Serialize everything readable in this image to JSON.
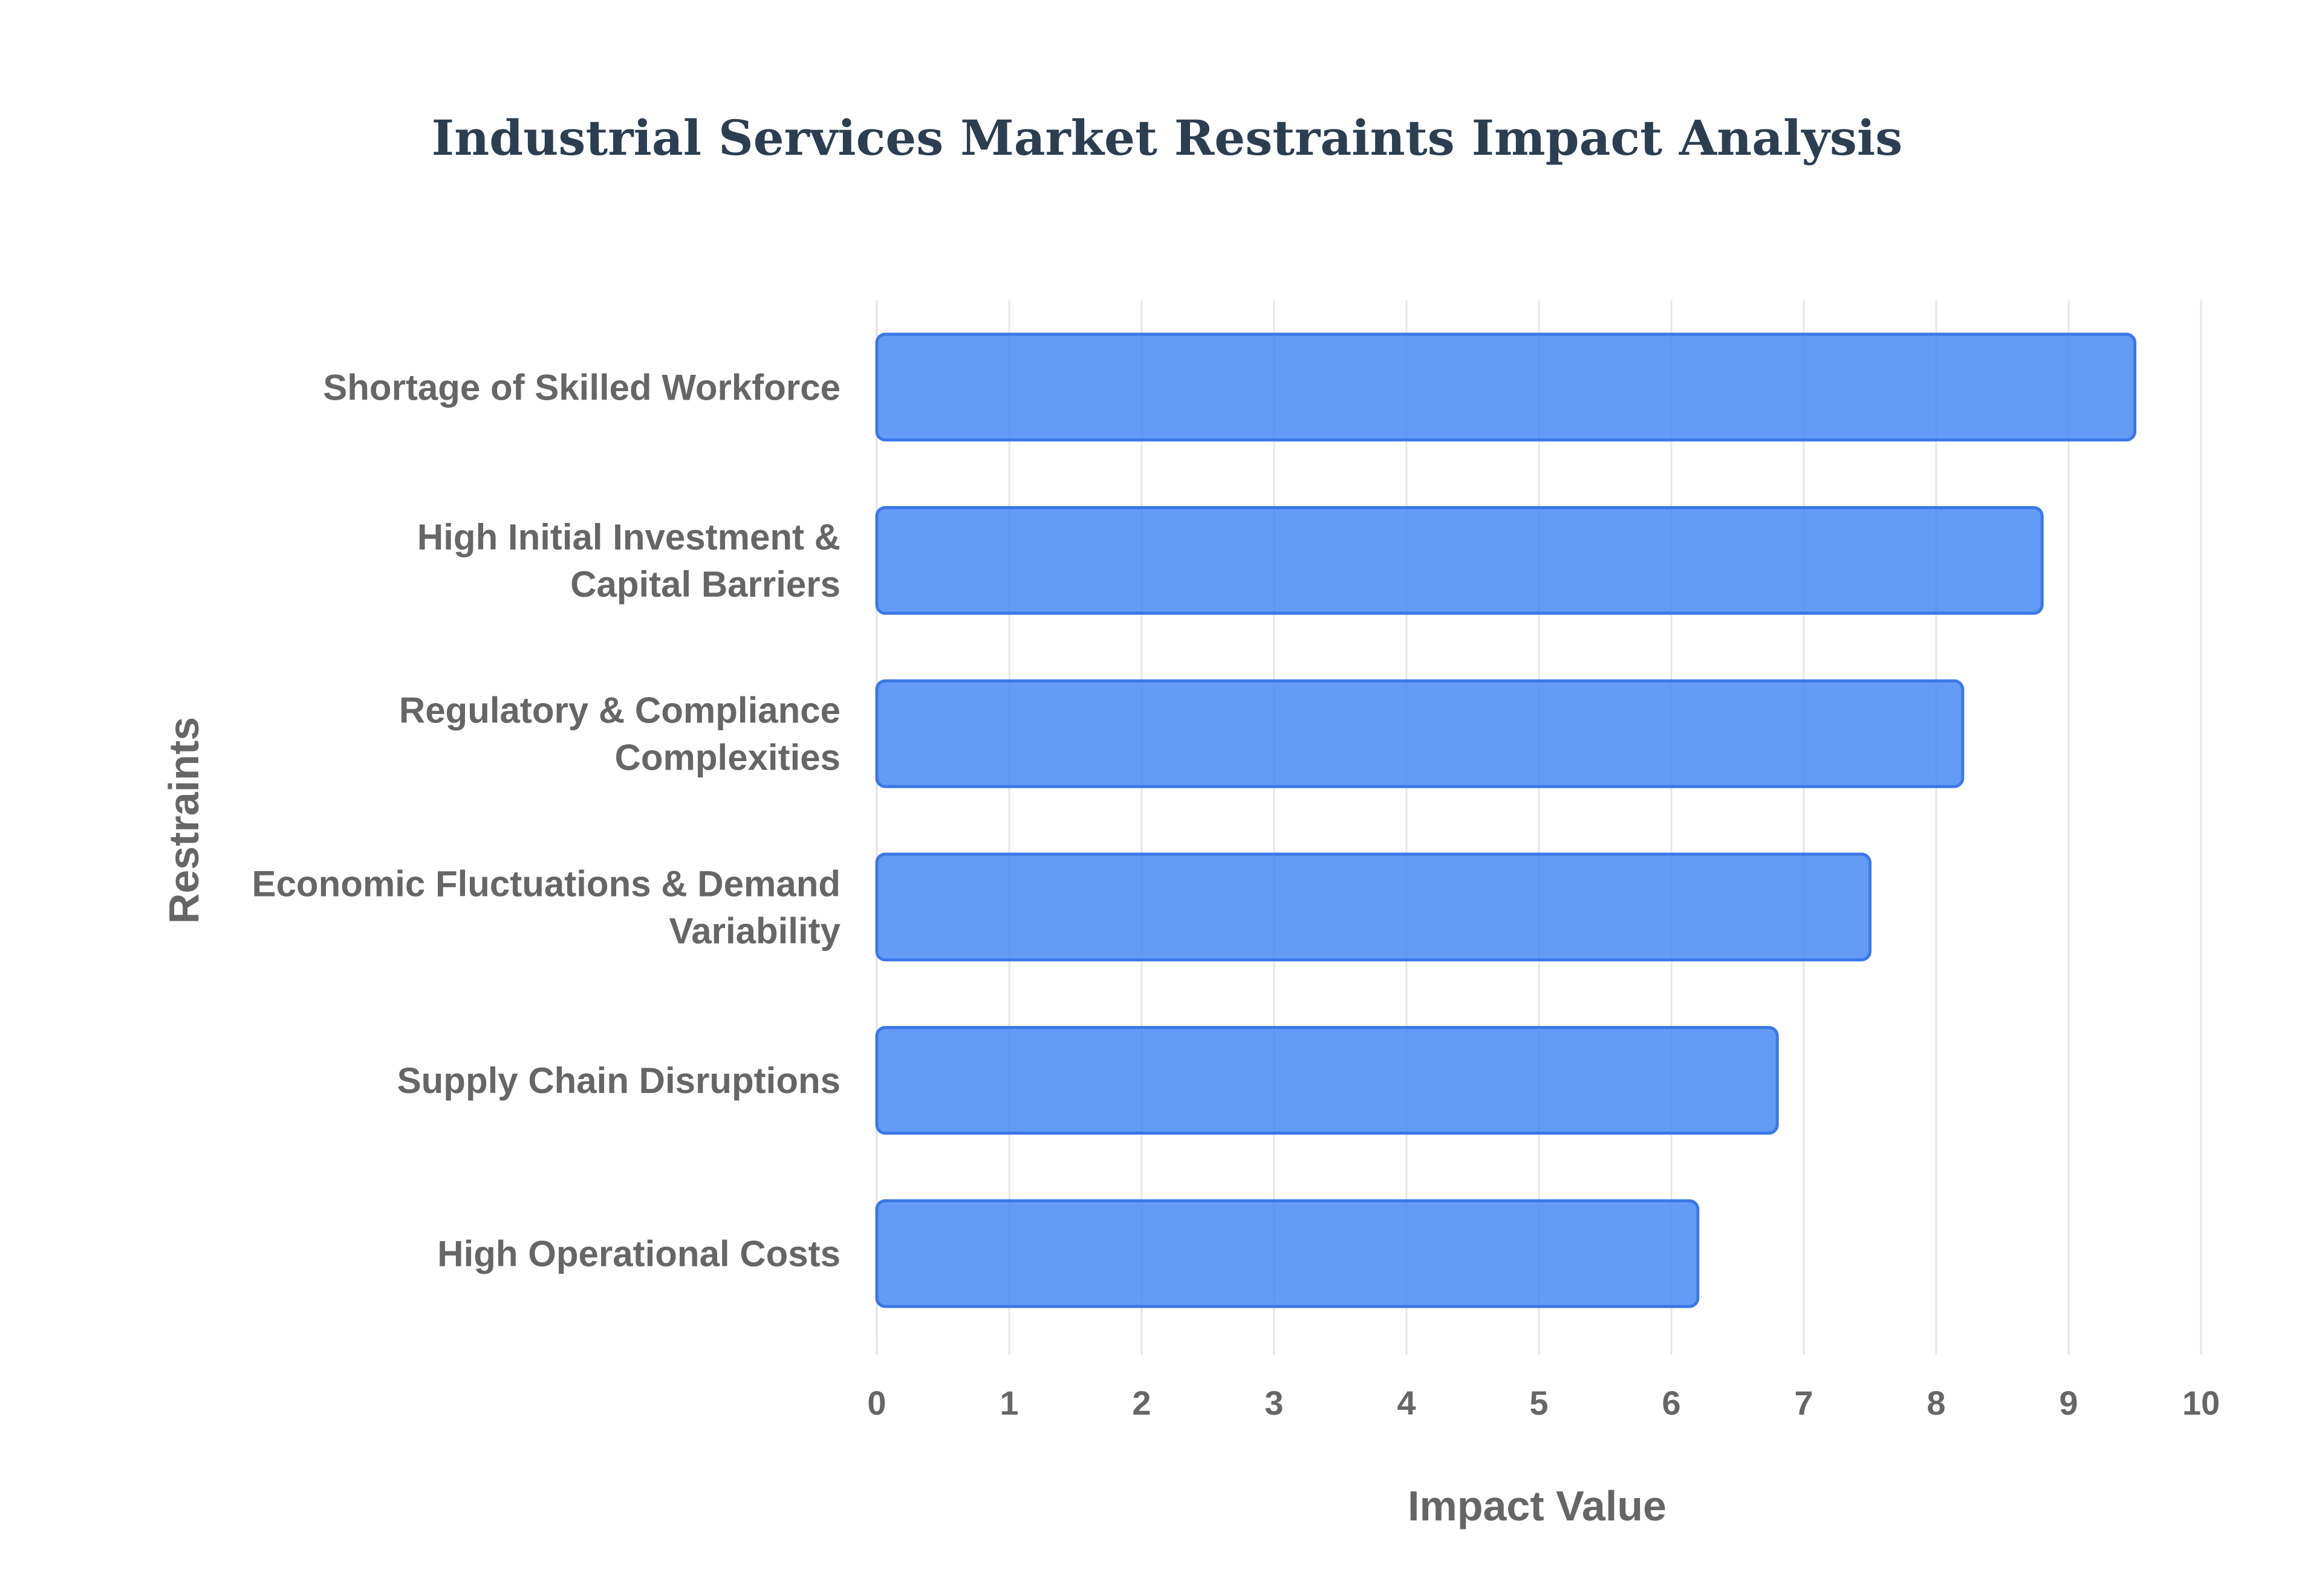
{
  "chart_data": {
    "type": "bar",
    "orientation": "horizontal",
    "title": "Industrial Services Market Restraints Impact Analysis",
    "xlabel": "Impact Value",
    "ylabel": "Restraints",
    "xlim": [
      0,
      10
    ],
    "x_ticks": [
      0,
      1,
      2,
      3,
      4,
      5,
      6,
      7,
      8,
      9,
      10
    ],
    "grid": true,
    "categories": [
      [
        "Shortage of Skilled Workforce"
      ],
      [
        "High Initial Investment &",
        "Capital Barriers"
      ],
      [
        "Regulatory & Compliance",
        "Complexities"
      ],
      [
        "Economic Fluctuations & Demand",
        "Variability"
      ],
      [
        "Supply Chain Disruptions"
      ],
      [
        "High Operational Costs"
      ]
    ],
    "values": [
      9.5,
      8.8,
      8.2,
      7.5,
      6.8,
      6.2
    ],
    "colors": {
      "bar_fill": "#4285f4",
      "bar_stroke": "#3b78e7",
      "title": "#2c3e50",
      "text": "#666666",
      "grid": "#e6e6e6"
    }
  }
}
